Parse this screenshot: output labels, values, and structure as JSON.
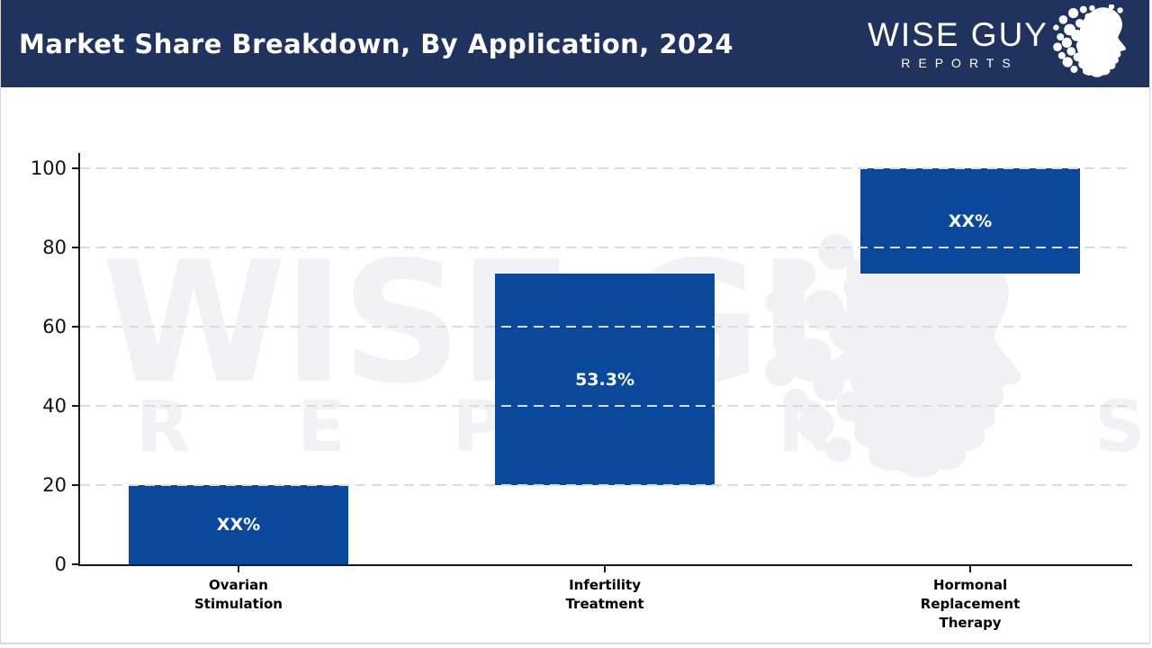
{
  "header": {
    "title": "Market Share Breakdown, By Application, 2024",
    "logo": {
      "main": "WISE GUY",
      "sub": "REPORTS"
    }
  },
  "watermark": {
    "text_large": "WISE GUY",
    "text_small": "REPORTS"
  },
  "chart_data": {
    "type": "bar",
    "subtype": "floating-waterfall",
    "title": "Market Share Breakdown, By Application, 2024",
    "categories": [
      "Ovarian Stimulation",
      "Infertility Treatment",
      "Hormonal Replacement Therapy"
    ],
    "category_lines": [
      [
        "Ovarian",
        "Stimulation"
      ],
      [
        "Infertility",
        "Treatment"
      ],
      [
        "Hormonal",
        "Replacement",
        "Therapy"
      ]
    ],
    "bars": [
      {
        "name": "Ovarian Stimulation",
        "start": 0,
        "end": 20,
        "value_label": "XX%"
      },
      {
        "name": "Infertility Treatment",
        "start": 20,
        "end": 73.3,
        "value_label": "53.3%"
      },
      {
        "name": "Hormonal Replacement Therapy",
        "start": 73.3,
        "end": 100,
        "value_label": "XX%"
      }
    ],
    "xlabel": "",
    "ylabel": "",
    "ylim": [
      0,
      100
    ],
    "y_ticks": [
      0,
      20,
      40,
      60,
      80,
      100
    ],
    "grid": "horizontal-dashed",
    "legend": "none",
    "bar_color": "#0a489c"
  },
  "colors": {
    "header_bg": "#20335f",
    "bar": "#0a489c",
    "grid": "#dcdcdc",
    "axis": "#1a1a1a",
    "watermark": "#f2f2f5",
    "title_text": "#ffffff"
  }
}
